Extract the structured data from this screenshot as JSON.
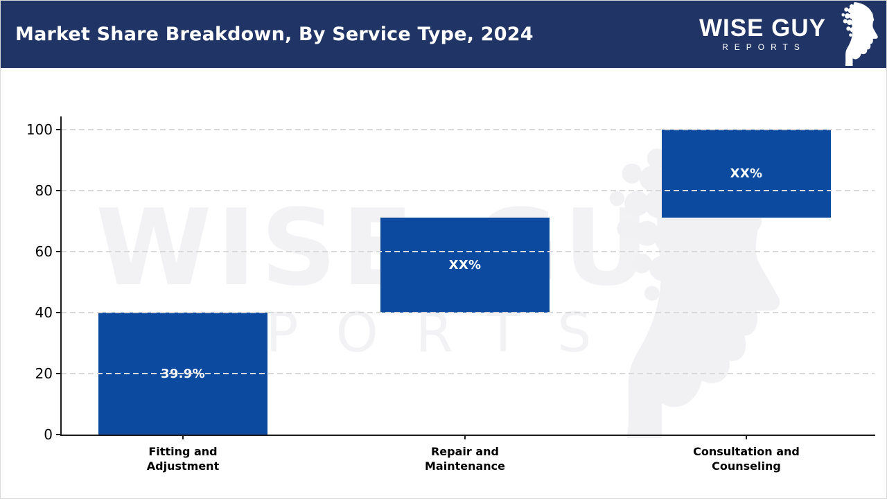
{
  "header": {
    "title": "Market Share Breakdown, By Service Type, 2024",
    "bg_color": "#203566",
    "logo": {
      "line1": "WISE GUY",
      "line2": "REPORTS"
    }
  },
  "watermark": {
    "line1": "WISE GUY",
    "line2": "REPORTS"
  },
  "chart_data": {
    "type": "bar",
    "subtype": "waterfall",
    "title": "Market Share Breakdown, By Service Type, 2024",
    "categories": [
      {
        "line1": "Fitting and",
        "line2": "Adjustment"
      },
      {
        "line1": "Repair and",
        "line2": "Maintenance"
      },
      {
        "line1": "Consultation and",
        "line2": "Counseling"
      }
    ],
    "segments": [
      {
        "category": "Fitting and Adjustment",
        "start": 0,
        "end": 39.9,
        "label": "39.9%"
      },
      {
        "category": "Repair and Maintenance",
        "start": 39.9,
        "end": 71.2,
        "label": "XX%"
      },
      {
        "category": "Consultation and Counseling",
        "start": 71.2,
        "end": 100,
        "label": "XX%"
      }
    ],
    "yticks": [
      0,
      20,
      40,
      60,
      80,
      100
    ],
    "ylim": [
      0,
      105
    ],
    "xlabel": "",
    "ylabel": "",
    "bar_color": "#0b4a9e",
    "bar_label_color": "#ffffff",
    "grid": "horizontal-dashed",
    "grid_color": "#d9d9d9",
    "legend": "none"
  }
}
